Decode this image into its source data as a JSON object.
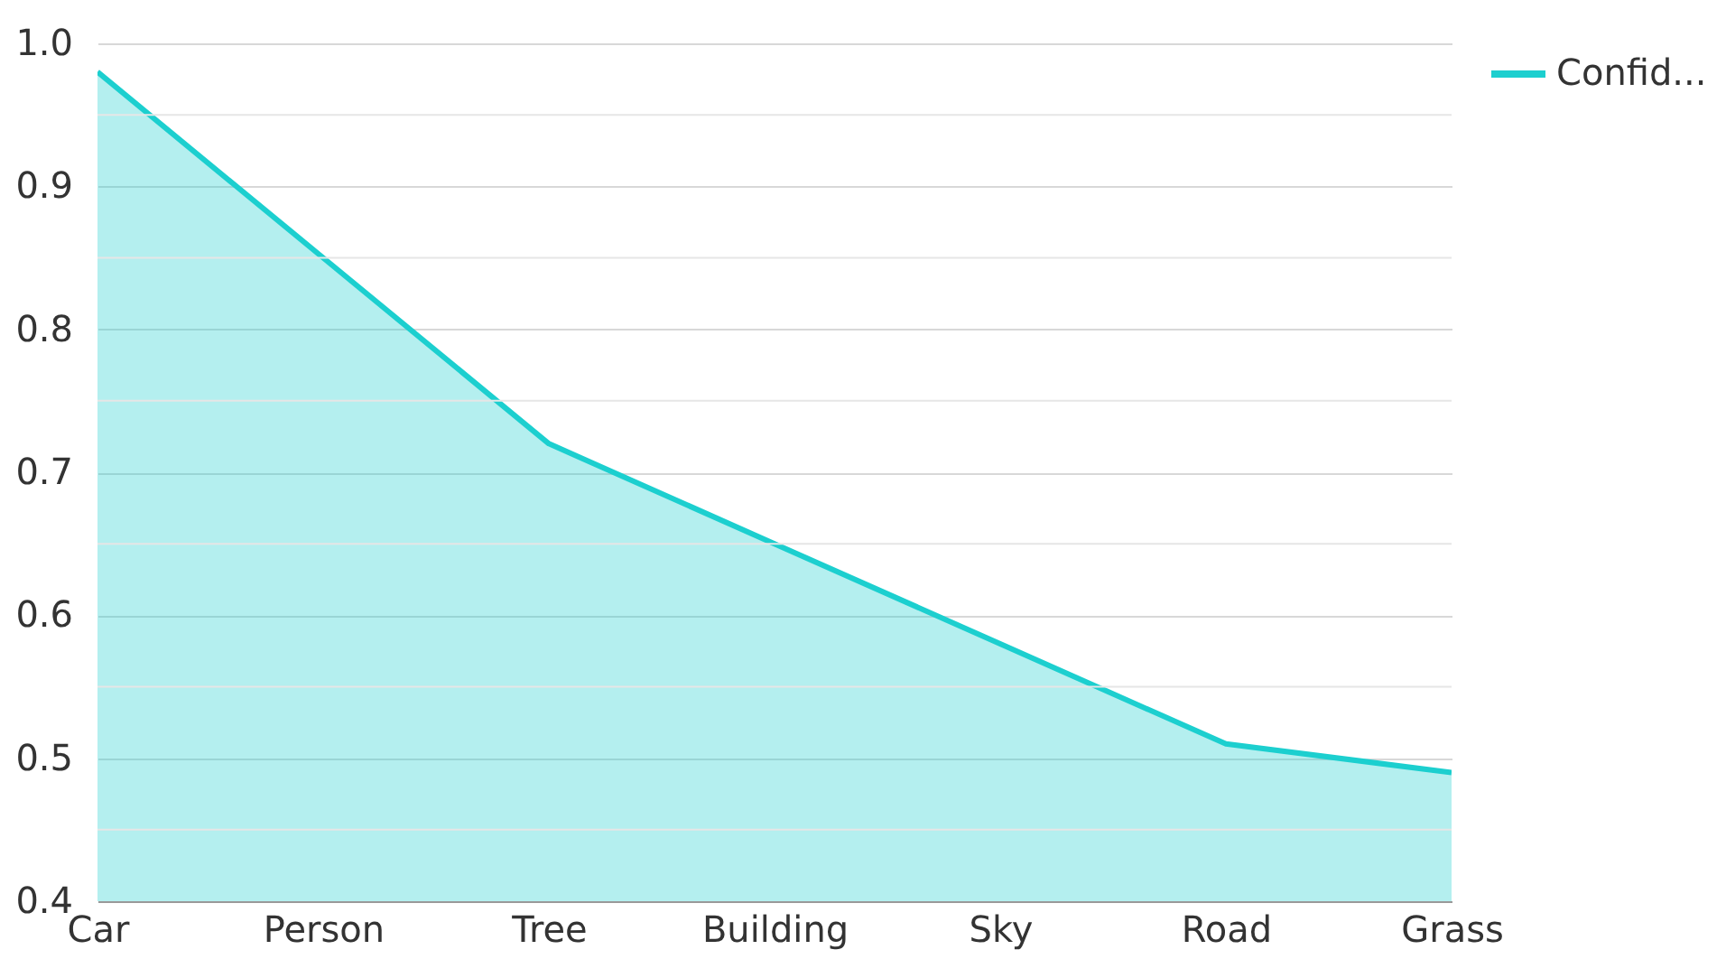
{
  "chart_data": {
    "type": "area",
    "categories": [
      "Car",
      "Person",
      "Tree",
      "Building",
      "Sky",
      "Road",
      "Grass"
    ],
    "series": [
      {
        "name": "Confid...",
        "color": "#1ccfcf",
        "values": [
          0.98,
          0.85,
          0.72,
          0.65,
          0.58,
          0.51,
          0.49
        ]
      }
    ],
    "ylim": [
      0.4,
      1.0
    ],
    "yticks": [
      0.4,
      {
        "value": 0.45,
        "label": null
      },
      0.5,
      {
        "value": 0.55,
        "label": null
      },
      0.6,
      {
        "value": 0.65,
        "label": null
      },
      0.7,
      {
        "value": 0.75,
        "label": null
      },
      0.8,
      {
        "value": 0.85,
        "label": null
      },
      0.9,
      {
        "value": 0.95,
        "label": null
      },
      {
        "value": 1.0,
        "label": "1.0"
      }
    ],
    "grid": "y",
    "legend": "top right"
  }
}
